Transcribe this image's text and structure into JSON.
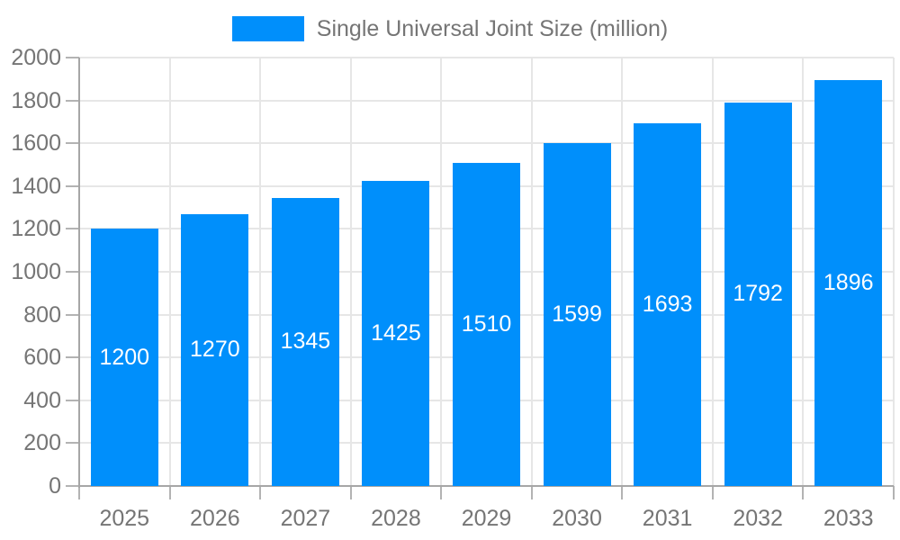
{
  "legend": {
    "label": "Single Universal Joint Size (million)"
  },
  "chart_data": {
    "type": "bar",
    "title": "Single Universal Joint Size (million)",
    "series_name": "Single Universal Joint Size (million)",
    "categories": [
      "2025",
      "2026",
      "2027",
      "2028",
      "2029",
      "2030",
      "2031",
      "2032",
      "2033"
    ],
    "values": [
      1200,
      1270,
      1345,
      1425,
      1510,
      1599,
      1693,
      1792,
      1896
    ],
    "value_labels": [
      "1200",
      "1270",
      "1345",
      "1425",
      "1510",
      "1599",
      "1693",
      "1792",
      "1896"
    ],
    "xlabel": "",
    "ylabel": "",
    "ylim": [
      0,
      2000
    ],
    "ytick_step": 200,
    "ytick_labels": [
      "0",
      "200",
      "400",
      "600",
      "800",
      "1000",
      "1200",
      "1400",
      "1600",
      "1800",
      "2000"
    ],
    "grid": true,
    "legend_position": "top-center",
    "colors": {
      "bar": "#008FFB",
      "value_label": "#ffffff",
      "axis_label": "#757575",
      "grid_line": "#e6e6e6",
      "axis_line": "#a6a6a6",
      "background": "#ffffff"
    }
  }
}
